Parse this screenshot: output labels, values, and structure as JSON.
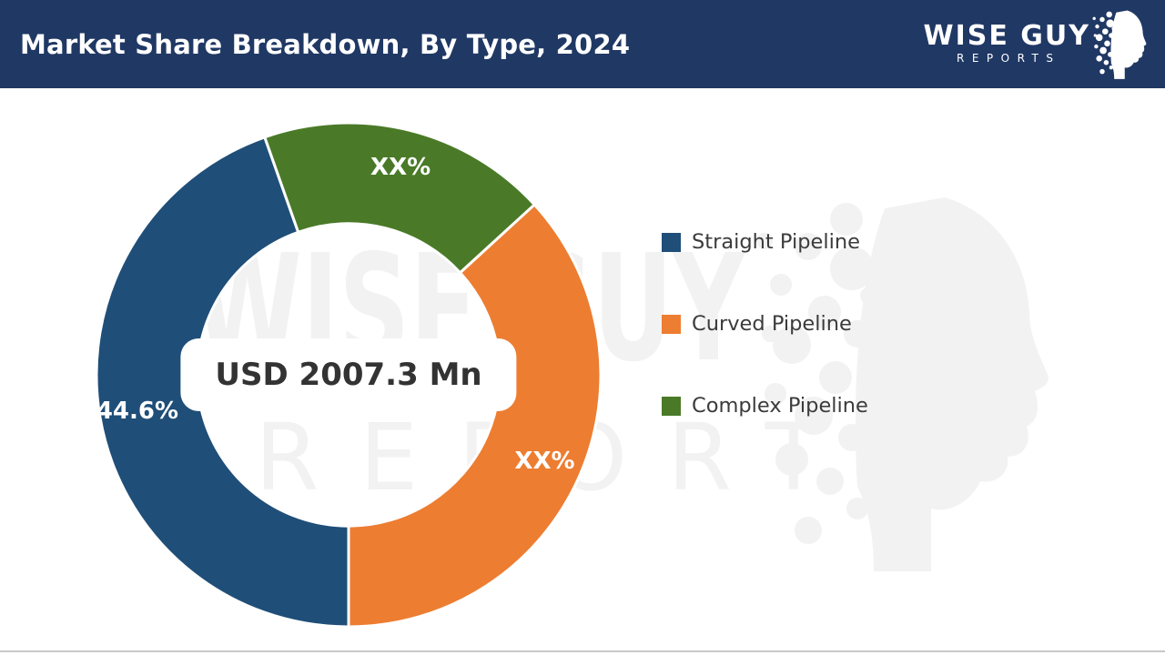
{
  "header": {
    "title": "Market Share Breakdown, By Type, 2024",
    "logo": {
      "wordmark": "WISE GUY",
      "tagline": "REPORTS"
    }
  },
  "watermark": {
    "wordmark": "WISE GUY",
    "tagline": "REPORTS"
  },
  "chart_data": {
    "type": "pie",
    "subtype": "donut",
    "title": "Market Share Breakdown, By Type, 2024",
    "center_label": "USD 2007.3 Mn",
    "unit": "percent of market share",
    "start_angle_deg": 90,
    "direction": "clockwise",
    "inner_radius_ratio": 0.6,
    "slices": [
      {
        "name": "Straight Pipeline",
        "value": 44.6,
        "display_label": "44.6%",
        "color": "#1f4e78"
      },
      {
        "name": "Complex Pipeline",
        "value": 18.6,
        "display_label": "XX%",
        "color": "#4a7a28"
      },
      {
        "name": "Curved Pipeline",
        "value": 36.8,
        "display_label": "XX%",
        "color": "#ed7d31"
      }
    ],
    "values_estimated_from_angles": [
      "Complex Pipeline",
      "Curved Pipeline"
    ],
    "legend": [
      {
        "label": "Straight Pipeline",
        "color": "#1f4e78"
      },
      {
        "label": "Curved Pipeline",
        "color": "#ed7d31"
      },
      {
        "label": "Complex Pipeline",
        "color": "#4a7a28"
      }
    ],
    "legend_position": "right"
  }
}
